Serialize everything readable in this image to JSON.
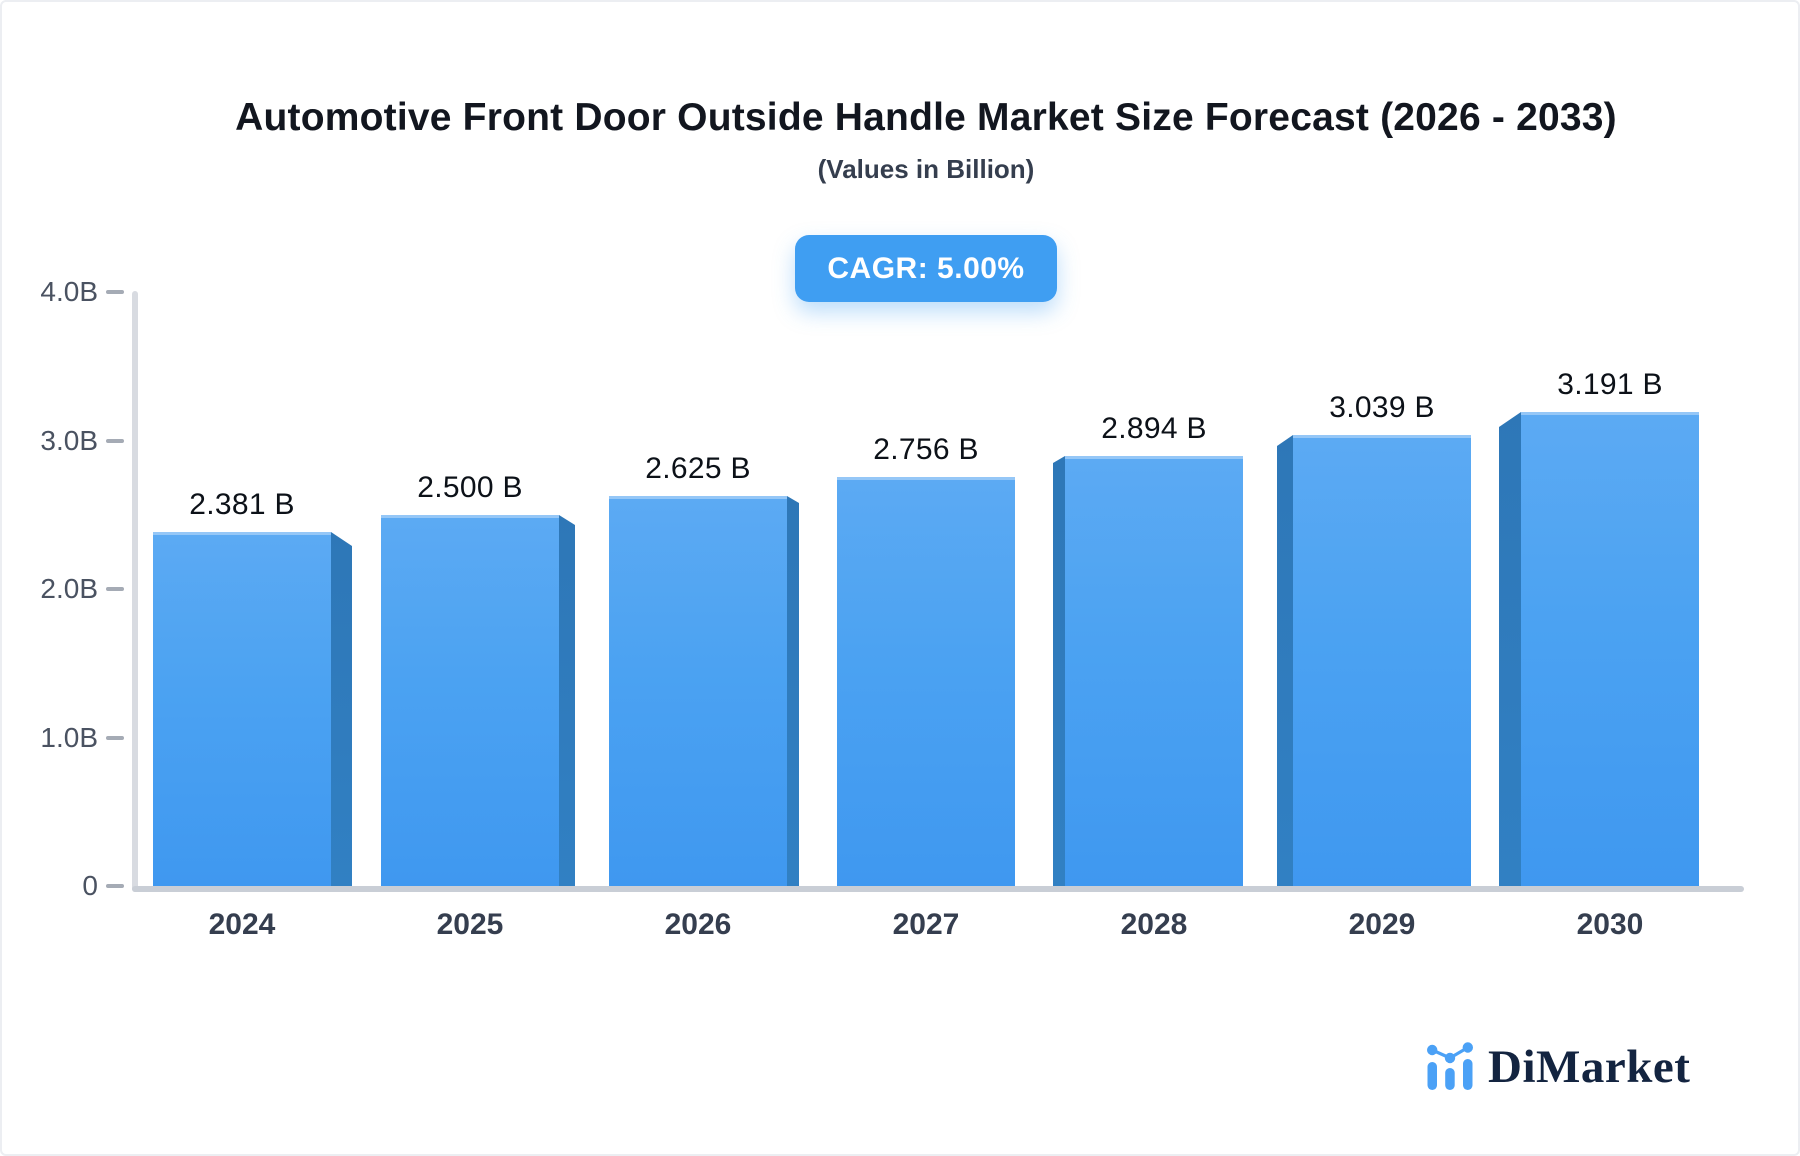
{
  "header": {
    "title": "Automotive Front Door Outside Handle Market Size Forecast (2026 - 2033)",
    "subtitle": "(Values in Billion)"
  },
  "cagr_badge": {
    "label": "CAGR: 5.00%"
  },
  "chart_data": {
    "type": "bar",
    "title": "Automotive Front Door Outside Handle Market Size Forecast (2026 - 2033)",
    "subtitle": "(Values in Billion)",
    "annotation": "CAGR: 5.00%",
    "categories": [
      "2024",
      "2025",
      "2026",
      "2027",
      "2028",
      "2029",
      "2030"
    ],
    "values": [
      2.381,
      2.5,
      2.625,
      2.756,
      2.894,
      3.039,
      3.191
    ],
    "value_labels": [
      "2.381 B",
      "2.500 B",
      "2.625 B",
      "2.756 B",
      "2.894 B",
      "3.039 B",
      "3.191 B"
    ],
    "ylim": [
      0,
      4
    ],
    "yticks": [
      {
        "label": "4.0B",
        "value": 4
      },
      {
        "label": "3.0B",
        "value": 3
      },
      {
        "label": "2.0B",
        "value": 2
      },
      {
        "label": "1.0B",
        "value": 1
      },
      {
        "label": "0",
        "value": 0
      }
    ],
    "grid": false,
    "legend": false,
    "style_3d": true,
    "colors": {
      "bar_top": "#5caaf3",
      "bar_bottom": "#3f98f0",
      "bar_side": "#2e77b7",
      "badge_bg": "#3f9ef2",
      "axis_line": "#d8dbe1",
      "baseline": "#c9ced6",
      "value_text": "#0c1118",
      "xtick_text": "#353e4f",
      "ytick_text": "#4a5261"
    }
  },
  "logo": {
    "brand": "DiMarket",
    "icon": "bar-chart-sparkline-icon",
    "icon_color": "#4ba1f6",
    "text_color": "#132440"
  }
}
